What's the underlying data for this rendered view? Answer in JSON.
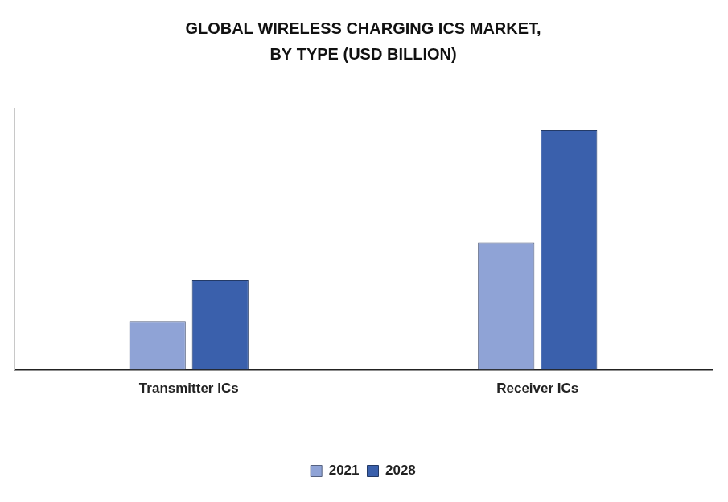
{
  "chart_data": {
    "type": "bar",
    "title": [
      "GLOBAL WIRELESS CHARGING ICS MARKET,",
      "BY TYPE (USD BILLION)"
    ],
    "categories": [
      "Transmitter ICs",
      "Receiver ICs"
    ],
    "series": [
      {
        "name": "2021",
        "color": "#8fa3d6",
        "values": [
          1.3,
          3.4
        ]
      },
      {
        "name": "2028",
        "color": "#3a60ac",
        "values": [
          2.4,
          6.4
        ]
      }
    ],
    "ylim": [
      0,
      7
    ],
    "grid": false,
    "legend": "bottom",
    "tick_labels": "x"
  }
}
